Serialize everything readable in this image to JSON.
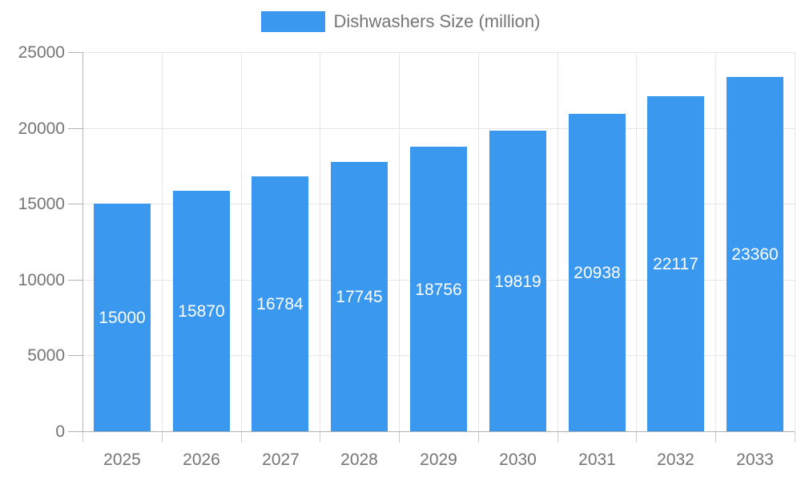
{
  "legend": {
    "label": "Dishwashers Size (million)"
  },
  "colors": {
    "bar": "#3a99ee",
    "grid": "#e6e6e6",
    "axis": "#b3b3b3",
    "tick_text": "#757575",
    "value_label": "#ffffff",
    "background": "#ffffff"
  },
  "chart_data": {
    "type": "bar",
    "title": "",
    "xlabel": "",
    "ylabel": "",
    "categories": [
      "2025",
      "2026",
      "2027",
      "2028",
      "2029",
      "2030",
      "2031",
      "2032",
      "2033"
    ],
    "series": [
      {
        "name": "Dishwashers Size (million)",
        "values": [
          15000,
          15870,
          16784,
          17745,
          18756,
          19819,
          20938,
          22117,
          23360
        ]
      }
    ],
    "value_labels_shown": true,
    "value_label_position": "inside-middle",
    "ylim": [
      0,
      25000
    ],
    "ytick_step": 5000,
    "ytick_labels": [
      "0",
      "5000",
      "10000",
      "15000",
      "20000",
      "25000"
    ],
    "grid": true,
    "legend_position": "top-center"
  }
}
